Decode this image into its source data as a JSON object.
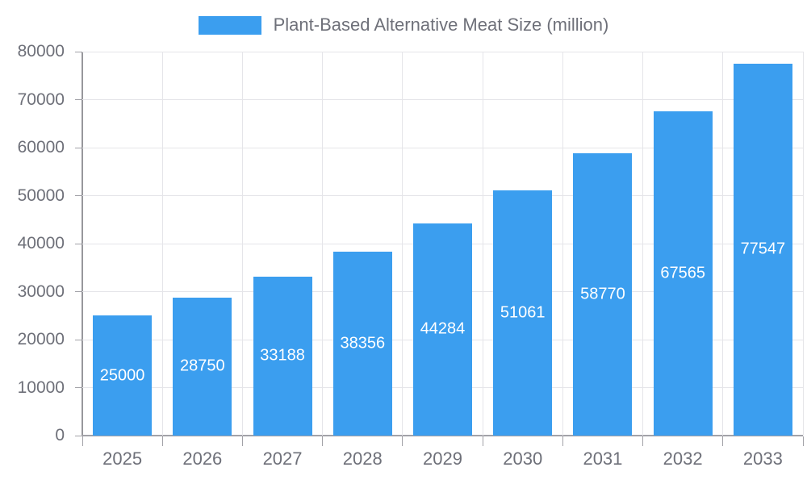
{
  "chart_data": {
    "type": "bar",
    "title": "Plant-Based Alternative Meat Size (million)",
    "categories": [
      "2025",
      "2026",
      "2027",
      "2028",
      "2029",
      "2030",
      "2031",
      "2032",
      "2033"
    ],
    "values": [
      25000,
      28750,
      33188,
      38356,
      44284,
      51061,
      58770,
      67565,
      77547
    ],
    "xlabel": "",
    "ylabel": "",
    "ylim": [
      0,
      80000
    ],
    "ytick_step": 10000,
    "ytick_labels": [
      "0",
      "10000",
      "20000",
      "30000",
      "40000",
      "50000",
      "60000",
      "70000",
      "80000"
    ],
    "grid": true,
    "legend_position": "top-center",
    "value_labels": "inside-center-white"
  },
  "legend": {
    "series_label": "Plant-Based Alternative Meat Size (million)"
  },
  "colors": {
    "bar": "#3B9EEF",
    "bar_value_text": "#FFFFFF",
    "axis_text": "#6E7079",
    "grid_line": "#E5E5E9",
    "axis_line": "#A2A2A8"
  }
}
